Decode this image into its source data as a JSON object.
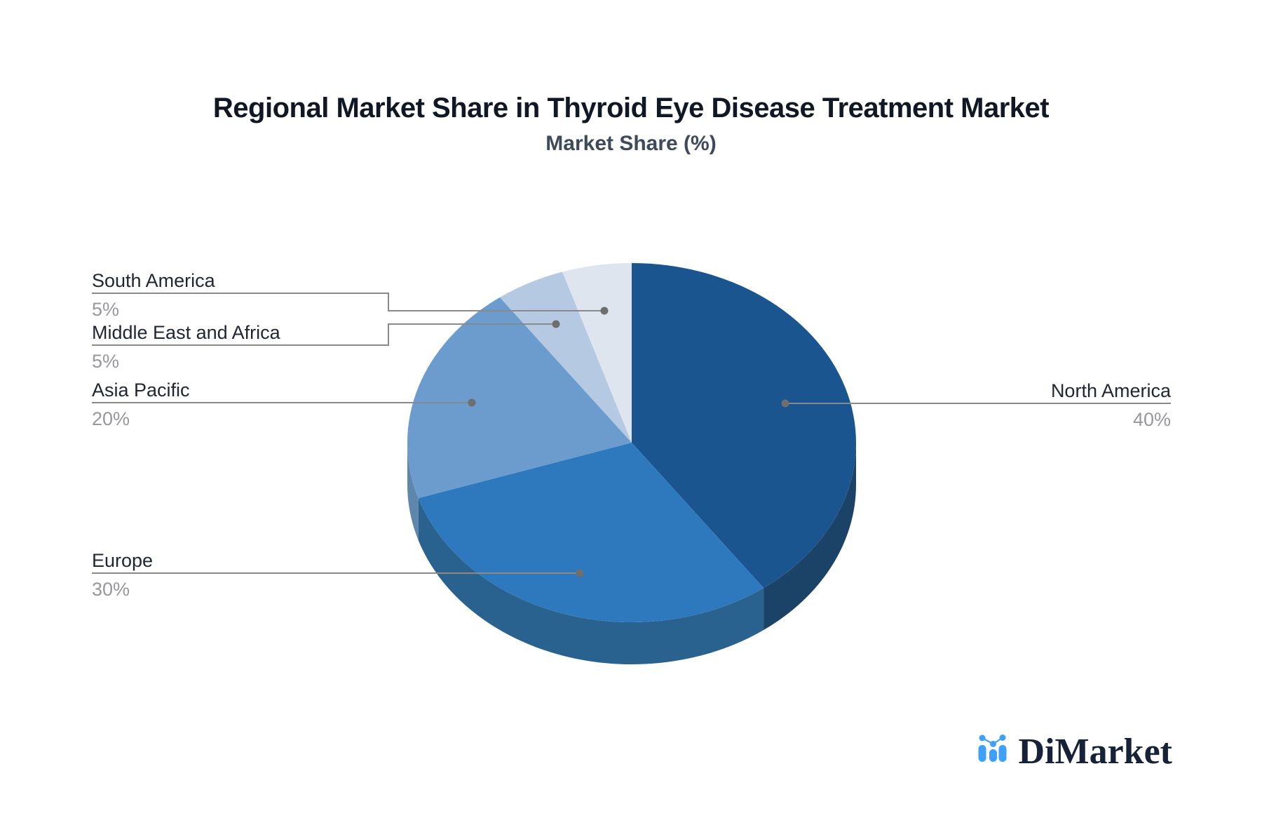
{
  "title": "Regional Market Share in Thyroid Eye Disease Treatment Market",
  "subtitle": "Market Share (%)",
  "chart_data": {
    "type": "pie",
    "style": "3d",
    "title": "Regional Market Share in Thyroid Eye Disease Treatment Market",
    "subtitle": "Market Share (%)",
    "unit": "%",
    "start_angle": "top",
    "direction": "clockwise",
    "legend": "none",
    "categories": [
      "North America",
      "Europe",
      "Asia Pacific",
      "Middle East and Africa",
      "South America"
    ],
    "values": [
      40,
      30,
      20,
      5,
      5
    ],
    "value_labels": [
      "40%",
      "30%",
      "20%",
      "5%",
      "5%"
    ],
    "colors": {
      "top": [
        "#1a5590",
        "#2e79bd",
        "#6c9bce",
        "#b5c9e2",
        "#dee5ef"
      ],
      "side": [
        "#1b4267",
        "#2a628f",
        "#5f87ac",
        "#8fa6c0",
        "#b6bfcc"
      ]
    }
  },
  "ui_colors": {
    "background": "#ffffff",
    "connector_line": "#8a8a8a",
    "connector_dot": "#6e6e6e",
    "title_text": "#101826",
    "subtitle_text": "#3d4a5c",
    "label_text": "#1f2633",
    "value_text": "#97979d",
    "logo_blue": "#3ea0f8",
    "logo_navy": "#152238"
  },
  "logo": {
    "name": "DiMarket",
    "icon": "bar-chart-with-dots-icon"
  }
}
